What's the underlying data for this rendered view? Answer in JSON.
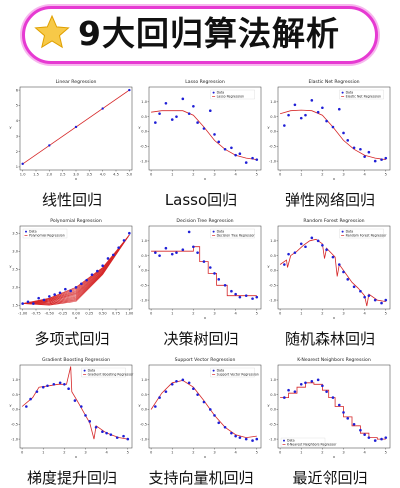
{
  "title": "9大回归算法解析",
  "colors": {
    "banner_border": "#e63ad2",
    "data": "#1f1fd6",
    "fit": "#d62728"
  },
  "chart_data": [
    {
      "type": "line",
      "title": "Linear Regression",
      "caption": "线性回归",
      "xlabel": "x",
      "ylabel": "y",
      "xlim": [
        0.9,
        5.1
      ],
      "ylim": [
        0.8,
        6.2
      ],
      "xticks": [
        "1.0",
        "1.5",
        "2.0",
        "2.5",
        "3.0",
        "3.5",
        "4.0",
        "4.5",
        "5.0"
      ],
      "yticks": [
        "1",
        "2",
        "3",
        "4",
        "5",
        "6"
      ],
      "points": [
        [
          1,
          1.2
        ],
        [
          2,
          2.4
        ],
        [
          3,
          3.6
        ],
        [
          4,
          4.8
        ],
        [
          5,
          6.0
        ]
      ],
      "fit": [
        [
          1,
          1.2
        ],
        [
          5,
          6.0
        ]
      ]
    },
    {
      "type": "scatter",
      "title": "Lasso Regression",
      "caption": "Lasso回归",
      "xlabel": "x",
      "ylabel": "y",
      "xlim": [
        -0.1,
        5.2
      ],
      "ylim": [
        -1.3,
        1.5
      ],
      "xticks": [
        "0",
        "1",
        "2",
        "3",
        "4",
        "5"
      ],
      "yticks": [
        "-1.0",
        "-0.5",
        "0.0",
        "0.5",
        "1.0"
      ],
      "legend": [
        "Data",
        "Lasso Regression"
      ],
      "points": [
        [
          0.2,
          0.3
        ],
        [
          0.4,
          0.6
        ],
        [
          0.7,
          0.95
        ],
        [
          1.0,
          0.4
        ],
        [
          1.2,
          0.5
        ],
        [
          1.5,
          1.1
        ],
        [
          1.8,
          0.6
        ],
        [
          2.0,
          0.85
        ],
        [
          2.2,
          0.3
        ],
        [
          2.5,
          0.1
        ],
        [
          2.8,
          0.7
        ],
        [
          3.0,
          -0.1
        ],
        [
          3.2,
          -0.35
        ],
        [
          3.5,
          -0.6
        ],
        [
          3.8,
          -0.55
        ],
        [
          4.0,
          -0.8
        ],
        [
          4.2,
          -0.75
        ],
        [
          4.5,
          -1.05
        ],
        [
          4.8,
          -0.9
        ],
        [
          5.0,
          -0.95
        ]
      ],
      "fit": [
        [
          0,
          0.65
        ],
        [
          0.5,
          0.7
        ],
        [
          1.0,
          0.7
        ],
        [
          1.5,
          0.7
        ],
        [
          2.0,
          0.55
        ],
        [
          2.5,
          0.15
        ],
        [
          3.0,
          -0.3
        ],
        [
          3.5,
          -0.6
        ],
        [
          4.0,
          -0.8
        ],
        [
          4.5,
          -0.9
        ],
        [
          5.0,
          -0.95
        ]
      ]
    },
    {
      "type": "scatter",
      "title": "Elastic Net Regression",
      "caption": "弹性网络回归",
      "xlabel": "x",
      "ylabel": "y",
      "xlim": [
        -0.1,
        5.2
      ],
      "ylim": [
        -1.3,
        1.5
      ],
      "xticks": [
        "0",
        "1",
        "2",
        "3",
        "4",
        "5"
      ],
      "yticks": [
        "-1.0",
        "-0.5",
        "0.0",
        "0.5",
        "1.0"
      ],
      "legend": [
        "Data",
        "Elastic Net Regression"
      ],
      "points": [
        [
          0.2,
          0.2
        ],
        [
          0.4,
          0.55
        ],
        [
          0.7,
          0.9
        ],
        [
          1.0,
          0.45
        ],
        [
          1.2,
          0.55
        ],
        [
          1.5,
          1.05
        ],
        [
          1.8,
          0.65
        ],
        [
          2.0,
          0.8
        ],
        [
          2.2,
          0.35
        ],
        [
          2.5,
          0.15
        ],
        [
          2.8,
          0.75
        ],
        [
          3.0,
          -0.05
        ],
        [
          3.2,
          -0.3
        ],
        [
          3.5,
          -0.55
        ],
        [
          3.8,
          -0.6
        ],
        [
          4.0,
          -0.85
        ],
        [
          4.2,
          -0.7
        ],
        [
          4.5,
          -1.0
        ],
        [
          4.8,
          -0.95
        ],
        [
          5.0,
          -0.9
        ]
      ],
      "fit": [
        [
          0,
          0.6
        ],
        [
          0.5,
          0.7
        ],
        [
          1.0,
          0.72
        ],
        [
          1.5,
          0.7
        ],
        [
          2.0,
          0.55
        ],
        [
          2.5,
          0.15
        ],
        [
          3.0,
          -0.3
        ],
        [
          3.5,
          -0.6
        ],
        [
          4.0,
          -0.8
        ],
        [
          4.5,
          -0.9
        ],
        [
          5.0,
          -0.95
        ]
      ]
    },
    {
      "type": "scatter",
      "title": "Polynomial Regression",
      "caption": "多项式回归",
      "xlabel": "x",
      "ylabel": "y",
      "xlim": [
        -1.05,
        1.05
      ],
      "ylim": [
        1.4,
        3.7
      ],
      "xticks": [
        "-1.00",
        "-0.75",
        "-0.50",
        "-0.25",
        "0.00",
        "0.25",
        "0.50",
        "0.75",
        "1.00"
      ],
      "yticks": [
        "1.5",
        "2.0",
        "2.5",
        "3.0",
        "3.5"
      ],
      "legend": [
        "Data",
        "Polynomial Regression"
      ],
      "points": [
        [
          -1.0,
          1.55
        ],
        [
          -0.9,
          1.6
        ],
        [
          -0.8,
          1.55
        ],
        [
          -0.7,
          1.7
        ],
        [
          -0.6,
          1.65
        ],
        [
          -0.5,
          1.75
        ],
        [
          -0.4,
          1.8
        ],
        [
          -0.3,
          1.85
        ],
        [
          -0.2,
          1.95
        ],
        [
          -0.1,
          1.9
        ],
        [
          0.0,
          2.0
        ],
        [
          0.1,
          2.1
        ],
        [
          0.2,
          2.2
        ],
        [
          0.3,
          2.35
        ],
        [
          0.4,
          2.45
        ],
        [
          0.5,
          2.6
        ],
        [
          0.6,
          2.8
        ],
        [
          0.7,
          2.9
        ],
        [
          0.8,
          3.1
        ],
        [
          0.9,
          3.3
        ],
        [
          1.0,
          3.5
        ]
      ],
      "fit": [
        [
          -1.0,
          1.55
        ],
        [
          -0.5,
          1.7
        ],
        [
          0.0,
          2.0
        ],
        [
          0.5,
          2.55
        ],
        [
          1.0,
          3.45
        ]
      ]
    },
    {
      "type": "scatter",
      "title": "Decision Tree Regression",
      "caption": "决策树回归",
      "xlabel": "x",
      "ylabel": "y",
      "xlim": [
        -0.1,
        5.2
      ],
      "ylim": [
        -1.3,
        1.5
      ],
      "xticks": [
        "0",
        "1",
        "2",
        "3",
        "4",
        "5"
      ],
      "yticks": [
        "-1.0",
        "-0.5",
        "0.0",
        "0.5",
        "1.0"
      ],
      "legend": [
        "Data",
        "Decision Tree Regressor"
      ],
      "points": [
        [
          0.2,
          0.6
        ],
        [
          0.4,
          0.5
        ],
        [
          0.7,
          0.75
        ],
        [
          1.0,
          0.55
        ],
        [
          1.2,
          0.6
        ],
        [
          1.5,
          0.7
        ],
        [
          1.8,
          1.3
        ],
        [
          2.0,
          0.8
        ],
        [
          2.2,
          0.6
        ],
        [
          2.5,
          0.3
        ],
        [
          2.8,
          0.1
        ],
        [
          3.0,
          -0.1
        ],
        [
          3.2,
          -0.3
        ],
        [
          3.5,
          -0.5
        ],
        [
          3.8,
          -0.7
        ],
        [
          4.0,
          -0.8
        ],
        [
          4.2,
          -0.9
        ],
        [
          4.5,
          -0.85
        ],
        [
          4.8,
          -0.95
        ],
        [
          5.0,
          -0.9
        ]
      ],
      "fit": [
        [
          0,
          0.65
        ],
        [
          2.0,
          0.65
        ],
        [
          2.0,
          0.8
        ],
        [
          2.3,
          0.8
        ],
        [
          2.3,
          0.3
        ],
        [
          2.7,
          0.3
        ],
        [
          2.7,
          -0.1
        ],
        [
          3.1,
          -0.1
        ],
        [
          3.1,
          -0.5
        ],
        [
          3.6,
          -0.5
        ],
        [
          3.6,
          -0.85
        ],
        [
          5.0,
          -0.85
        ]
      ]
    },
    {
      "type": "scatter",
      "title": "Random Forest Regression",
      "caption": "随机森林回归",
      "xlabel": "x",
      "ylabel": "y",
      "xlim": [
        -0.1,
        5.2
      ],
      "ylim": [
        -1.3,
        1.5
      ],
      "xticks": [
        "0",
        "1",
        "2",
        "3",
        "4",
        "5"
      ],
      "yticks": [
        "-1.0",
        "-0.5",
        "0.0",
        "0.5",
        "1.0"
      ],
      "legend": [
        "Data",
        "Random Forest Regressor"
      ],
      "points": [
        [
          0.2,
          0.2
        ],
        [
          0.4,
          0.55
        ],
        [
          0.7,
          0.6
        ],
        [
          1.0,
          0.9
        ],
        [
          1.2,
          0.8
        ],
        [
          1.5,
          1.1
        ],
        [
          1.8,
          1.0
        ],
        [
          2.0,
          0.85
        ],
        [
          2.2,
          0.7
        ],
        [
          2.5,
          0.45
        ],
        [
          2.8,
          0.2
        ],
        [
          3.0,
          -0.05
        ],
        [
          3.2,
          -0.3
        ],
        [
          3.5,
          -0.55
        ],
        [
          3.8,
          -0.7
        ],
        [
          4.0,
          -0.9
        ],
        [
          4.2,
          -0.85
        ],
        [
          4.5,
          -1.0
        ],
        [
          4.8,
          -1.1
        ],
        [
          5.0,
          -1.0
        ]
      ],
      "fit": [
        [
          0,
          0.2
        ],
        [
          0.3,
          0.35
        ],
        [
          0.35,
          0.1
        ],
        [
          0.5,
          0.5
        ],
        [
          0.8,
          0.65
        ],
        [
          1.1,
          0.85
        ],
        [
          1.4,
          1.0
        ],
        [
          1.7,
          1.05
        ],
        [
          2.0,
          0.9
        ],
        [
          2.1,
          0.4
        ],
        [
          2.2,
          0.75
        ],
        [
          2.6,
          0.45
        ],
        [
          2.7,
          -0.2
        ],
        [
          2.8,
          0.2
        ],
        [
          3.1,
          -0.1
        ],
        [
          3.4,
          -0.4
        ],
        [
          3.7,
          -0.6
        ],
        [
          4.0,
          -0.85
        ],
        [
          4.1,
          -1.2
        ],
        [
          4.2,
          -0.8
        ],
        [
          4.6,
          -1.0
        ],
        [
          5.0,
          -1.05
        ]
      ]
    },
    {
      "type": "scatter",
      "title": "Gradient Boosting Regression",
      "caption": "梯度提升回归",
      "xlabel": "x",
      "ylabel": "y",
      "xlim": [
        -0.1,
        5.2
      ],
      "ylim": [
        -1.3,
        1.5
      ],
      "xticks": [
        "0",
        "1",
        "2",
        "3",
        "4",
        "5"
      ],
      "yticks": [
        "-1.0",
        "-0.5",
        "0.0",
        "0.5",
        "1.0"
      ],
      "legend": [
        "Data",
        "Gradient Boosting Regressor"
      ],
      "points": [
        [
          0.2,
          0.1
        ],
        [
          0.4,
          0.35
        ],
        [
          0.7,
          0.6
        ],
        [
          1.0,
          0.75
        ],
        [
          1.2,
          0.8
        ],
        [
          1.5,
          0.85
        ],
        [
          1.8,
          0.9
        ],
        [
          2.0,
          0.85
        ],
        [
          2.2,
          0.7
        ],
        [
          2.5,
          0.3
        ],
        [
          2.8,
          0.1
        ],
        [
          3.0,
          -0.2
        ],
        [
          3.2,
          -0.4
        ],
        [
          3.5,
          -0.6
        ],
        [
          3.8,
          -0.75
        ],
        [
          4.0,
          -0.8
        ],
        [
          4.2,
          -0.85
        ],
        [
          4.5,
          -0.95
        ],
        [
          4.8,
          -0.9
        ],
        [
          5.0,
          -1.0
        ]
      ],
      "fit": [
        [
          0,
          0.1
        ],
        [
          0.5,
          0.4
        ],
        [
          0.8,
          0.75
        ],
        [
          1.3,
          0.8
        ],
        [
          1.7,
          0.85
        ],
        [
          2.1,
          0.85
        ],
        [
          2.3,
          1.45
        ],
        [
          2.35,
          0.6
        ],
        [
          2.6,
          0.3
        ],
        [
          3.0,
          -0.2
        ],
        [
          3.2,
          -0.45
        ],
        [
          3.4,
          -1.0
        ],
        [
          3.5,
          -0.55
        ],
        [
          3.9,
          -0.75
        ],
        [
          4.2,
          -0.85
        ],
        [
          4.6,
          -0.95
        ],
        [
          5.0,
          -1.0
        ]
      ]
    },
    {
      "type": "scatter",
      "title": "Support Vector Regression",
      "caption": "支持向量机回归",
      "xlabel": "x",
      "ylabel": "y",
      "xlim": [
        -0.1,
        5.2
      ],
      "ylim": [
        -1.3,
        1.5
      ],
      "xticks": [
        "0",
        "1",
        "2",
        "3",
        "4",
        "5"
      ],
      "yticks": [
        "-1.0",
        "-0.5",
        "0.0",
        "0.5",
        "1.0"
      ],
      "legend": [
        "Data",
        "Support Vector Regression"
      ],
      "points": [
        [
          0.2,
          0.1
        ],
        [
          0.4,
          0.4
        ],
        [
          0.7,
          0.6
        ],
        [
          1.0,
          0.85
        ],
        [
          1.2,
          0.95
        ],
        [
          1.5,
          1.0
        ],
        [
          1.8,
          0.9
        ],
        [
          2.0,
          0.7
        ],
        [
          2.2,
          0.5
        ],
        [
          2.5,
          0.25
        ],
        [
          2.8,
          0.0
        ],
        [
          3.0,
          -0.2
        ],
        [
          3.2,
          -0.45
        ],
        [
          3.5,
          -0.6
        ],
        [
          3.8,
          -0.8
        ],
        [
          4.0,
          -0.9
        ],
        [
          4.2,
          -0.95
        ],
        [
          4.5,
          -1.0
        ],
        [
          4.8,
          -1.05
        ],
        [
          5.0,
          -1.0
        ]
      ],
      "fit": [
        [
          0,
          0.0
        ],
        [
          0.5,
          0.55
        ],
        [
          1.0,
          0.9
        ],
        [
          1.5,
          0.98
        ],
        [
          2.0,
          0.75
        ],
        [
          2.5,
          0.3
        ],
        [
          3.0,
          -0.2
        ],
        [
          3.5,
          -0.6
        ],
        [
          4.0,
          -0.85
        ],
        [
          4.5,
          -0.95
        ],
        [
          5.0,
          -0.9
        ]
      ]
    },
    {
      "type": "scatter",
      "title": "K-Nearest Neighbors Regression",
      "caption": "最近邻回归",
      "xlabel": "x",
      "ylabel": "y",
      "xlim": [
        -0.1,
        5.2
      ],
      "ylim": [
        -1.3,
        1.5
      ],
      "xticks": [
        "0",
        "1",
        "2",
        "3",
        "4",
        "5"
      ],
      "yticks": [
        "-1.0",
        "-0.5",
        "0.0",
        "0.5",
        "1.0"
      ],
      "legend": [
        "Data",
        "K-Nearest Neighbors Regressor"
      ],
      "points": [
        [
          0.2,
          0.4
        ],
        [
          0.4,
          0.65
        ],
        [
          0.7,
          0.6
        ],
        [
          1.0,
          0.85
        ],
        [
          1.2,
          0.9
        ],
        [
          1.5,
          0.95
        ],
        [
          1.8,
          1.0
        ],
        [
          2.0,
          0.8
        ],
        [
          2.2,
          0.6
        ],
        [
          2.5,
          0.4
        ],
        [
          2.8,
          0.15
        ],
        [
          3.0,
          -0.1
        ],
        [
          3.2,
          -0.3
        ],
        [
          3.5,
          -0.5
        ],
        [
          3.8,
          -0.7
        ],
        [
          4.0,
          -0.85
        ],
        [
          4.2,
          -0.95
        ],
        [
          4.5,
          -1.05
        ],
        [
          4.8,
          -1.0
        ],
        [
          5.0,
          -0.95
        ]
      ],
      "fit": [
        [
          0,
          0.4
        ],
        [
          0.4,
          0.4
        ],
        [
          0.4,
          0.55
        ],
        [
          0.8,
          0.55
        ],
        [
          0.8,
          0.75
        ],
        [
          1.2,
          0.75
        ],
        [
          1.2,
          0.9
        ],
        [
          1.6,
          0.9
        ],
        [
          1.6,
          0.85
        ],
        [
          2.0,
          0.85
        ],
        [
          2.0,
          0.65
        ],
        [
          2.3,
          0.65
        ],
        [
          2.3,
          0.4
        ],
        [
          2.6,
          0.4
        ],
        [
          2.6,
          0.1
        ],
        [
          3.0,
          0.1
        ],
        [
          3.0,
          -0.25
        ],
        [
          3.4,
          -0.25
        ],
        [
          3.4,
          -0.55
        ],
        [
          3.8,
          -0.55
        ],
        [
          3.8,
          -0.8
        ],
        [
          4.2,
          -0.8
        ],
        [
          4.2,
          -0.95
        ],
        [
          4.6,
          -0.95
        ],
        [
          4.6,
          -1.0
        ],
        [
          5.0,
          -1.0
        ]
      ]
    }
  ]
}
